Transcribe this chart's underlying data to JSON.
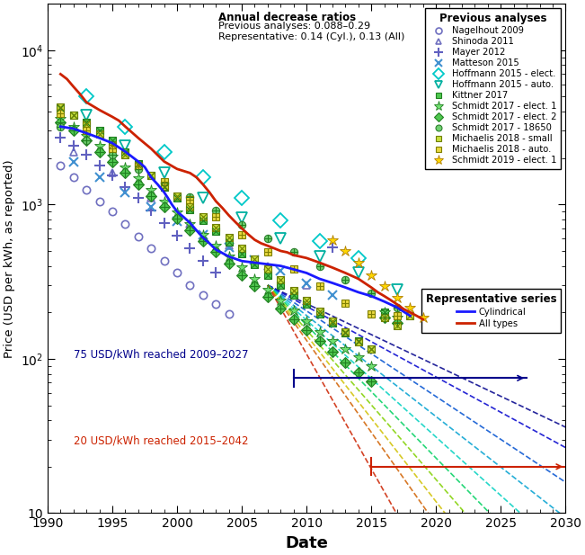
{
  "xlabel": "Date",
  "ylabel": "Price (USD per kWh, as reported)",
  "xlim": [
    1990,
    2030
  ],
  "ylim": [
    10,
    20000
  ],
  "annotation_75": "75 USD/kWh reached 2009–2027",
  "annotation_20": "20 USD/kWh reached 2015–2042",
  "legend_title1": "Annual decrease ratios",
  "legend_line2": "Previous analyses: 0.088–0.29",
  "legend_line3": "Representative: 0.14 (Cyl.), 0.13 (All)",
  "blue_line_x": [
    1991,
    1992,
    1993,
    1994,
    1995,
    1996,
    1997,
    1997.5,
    1998,
    1998.5,
    1999,
    1999.3,
    1999.6,
    2000,
    2000.5,
    2001,
    2001.5,
    2002,
    2002.5,
    2003,
    2004,
    2005,
    2006,
    2007,
    2008,
    2009,
    2010,
    2011,
    2012,
    2013,
    2014,
    2015,
    2016,
    2017,
    2018
  ],
  "blue_line_y": [
    3200,
    3100,
    2900,
    2700,
    2500,
    2200,
    1900,
    1750,
    1500,
    1350,
    1200,
    1100,
    1000,
    900,
    830,
    760,
    680,
    610,
    560,
    510,
    460,
    430,
    420,
    410,
    400,
    380,
    360,
    330,
    310,
    290,
    270,
    255,
    235,
    215,
    190
  ],
  "red_line_x": [
    1991,
    1991.5,
    1992,
    1992.5,
    1993,
    1994,
    1995,
    1995.5,
    1996,
    1997,
    1998,
    1999,
    2000,
    2001,
    2001.5,
    2002,
    2002.5,
    2003,
    2003.5,
    2004,
    2004.5,
    2005,
    2005.5,
    2006,
    2006.5,
    2007,
    2007.5,
    2008,
    2008.5,
    2009,
    2010,
    2011,
    2012,
    2013,
    2014,
    2015,
    2015.5,
    2016,
    2016.5,
    2017,
    2017.5,
    2018,
    2018.5,
    2019
  ],
  "red_line_y": [
    7000,
    6500,
    5800,
    5200,
    4600,
    4100,
    3700,
    3500,
    3200,
    2700,
    2300,
    1900,
    1700,
    1600,
    1500,
    1350,
    1200,
    1050,
    950,
    850,
    770,
    700,
    640,
    590,
    560,
    540,
    520,
    500,
    490,
    470,
    450,
    420,
    390,
    360,
    330,
    290,
    270,
    255,
    240,
    225,
    210,
    200,
    190,
    180
  ],
  "nagelhout_x": [
    1991,
    1992,
    1993,
    1994,
    1995,
    1996,
    1997,
    1998,
    1999,
    2000,
    2001,
    2002,
    2003,
    2004
  ],
  "nagelhout_y": [
    1800,
    1500,
    1250,
    1050,
    900,
    750,
    620,
    520,
    430,
    360,
    300,
    260,
    225,
    195
  ],
  "shinoda_x": [
    1992,
    1995,
    1998,
    2001,
    2004,
    2007,
    2010
  ],
  "shinoda_y": [
    2200,
    1600,
    1100,
    750,
    540,
    400,
    300
  ],
  "mayer_x": [
    1991,
    1992,
    1993,
    1994,
    1995,
    1996,
    1997,
    1998,
    1999,
    2000,
    2001,
    2002,
    2003,
    2012
  ],
  "mayer_y": [
    2700,
    2400,
    2100,
    1800,
    1550,
    1300,
    1100,
    920,
    760,
    630,
    520,
    430,
    360,
    530
  ],
  "matteson_x": [
    1992,
    1994,
    1996,
    1998,
    2000,
    2002,
    2004,
    2006,
    2008,
    2010,
    2012
  ],
  "matteson_y": [
    1900,
    1500,
    1200,
    960,
    780,
    640,
    530,
    440,
    370,
    310,
    260
  ],
  "hoffmann_elect_x": [
    1993,
    1996,
    1999,
    2002,
    2005,
    2008,
    2011,
    2014
  ],
  "hoffmann_elect_y": [
    5000,
    3200,
    2200,
    1500,
    1100,
    790,
    580,
    450
  ],
  "hoffmann_auto_x": [
    1993,
    1996,
    1999,
    2002,
    2005,
    2008,
    2011,
    2014,
    2017
  ],
  "hoffmann_auto_y": [
    3800,
    2400,
    1600,
    1100,
    820,
    600,
    460,
    360,
    280
  ],
  "kittner_x": [
    1991,
    1992,
    1993,
    1994,
    1995,
    1996,
    1997,
    1998,
    1999,
    2000,
    2001,
    2002,
    2003,
    2004,
    2005,
    2006,
    2007,
    2008,
    2009,
    2010,
    2011,
    2012,
    2013,
    2014,
    2015,
    2016
  ],
  "kittner_y": [
    4200,
    3800,
    3400,
    3000,
    2600,
    2200,
    1850,
    1550,
    1300,
    1100,
    930,
    790,
    670,
    570,
    480,
    410,
    350,
    300,
    260,
    225,
    195,
    170,
    148,
    130,
    115,
    200
  ],
  "schmidt_e1_x": [
    1991,
    1992,
    1993,
    1994,
    1995,
    1996,
    1997,
    1998,
    1999,
    2000,
    2001,
    2002,
    2003,
    2004,
    2005,
    2006,
    2007,
    2008,
    2009,
    2010,
    2011,
    2012,
    2013,
    2014,
    2015,
    2016,
    2017
  ],
  "schmidt_e1_y": [
    3600,
    3200,
    2800,
    2400,
    2050,
    1750,
    1480,
    1250,
    1050,
    890,
    750,
    640,
    540,
    460,
    390,
    330,
    280,
    240,
    205,
    175,
    150,
    130,
    115,
    102,
    90,
    200,
    185
  ],
  "schmidt_e2_x": [
    1991,
    1992,
    1993,
    1994,
    1995,
    1996,
    1997,
    1998,
    1999,
    2000,
    2001,
    2002,
    2003,
    2004,
    2005,
    2006,
    2007,
    2008,
    2009,
    2010,
    2011,
    2012,
    2013,
    2014,
    2015,
    2016,
    2017
  ],
  "schmidt_e2_y": [
    3400,
    3000,
    2600,
    2200,
    1880,
    1600,
    1350,
    1140,
    960,
    810,
    685,
    580,
    490,
    415,
    350,
    297,
    252,
    213,
    181,
    154,
    131,
    111,
    95,
    82,
    71,
    185,
    170
  ],
  "schmidt_18650_x": [
    1991,
    1993,
    1995,
    1997,
    1999,
    2001,
    2003,
    2005,
    2007,
    2009,
    2011,
    2013,
    2015,
    2017
  ],
  "schmidt_18650_y": [
    3200,
    2600,
    2100,
    1700,
    1380,
    1120,
    910,
    740,
    600,
    490,
    400,
    325,
    265,
    215
  ],
  "michaelis_small_x": [
    1991,
    1992,
    1993,
    1994,
    1995,
    1996,
    1997,
    1998,
    1999,
    2000,
    2001,
    2002,
    2003,
    2004,
    2005,
    2006,
    2007,
    2008,
    2009,
    2010,
    2011,
    2012,
    2013,
    2014,
    2015,
    2016,
    2017,
    2018
  ],
  "michaelis_small_y": [
    4300,
    3800,
    3300,
    2850,
    2450,
    2100,
    1800,
    1540,
    1320,
    1130,
    970,
    830,
    710,
    610,
    520,
    445,
    380,
    325,
    278,
    238,
    204,
    175,
    150,
    129,
    115,
    185,
    165,
    190
  ],
  "michaelis_auto_x": [
    1991,
    1993,
    1995,
    1997,
    1999,
    2001,
    2003,
    2005,
    2007,
    2009,
    2011,
    2013,
    2015,
    2017
  ],
  "michaelis_auto_y": [
    3900,
    3000,
    2300,
    1800,
    1400,
    1080,
    830,
    640,
    490,
    380,
    295,
    230,
    195,
    190
  ],
  "schmidt2019_x": [
    2012,
    2013,
    2014,
    2015,
    2016,
    2017,
    2018,
    2019
  ],
  "schmidt2019_y": [
    590,
    500,
    420,
    350,
    295,
    250,
    215,
    185
  ],
  "dashed_rates": [
    0.088,
    0.1,
    0.12,
    0.14,
    0.16,
    0.18,
    0.2,
    0.22,
    0.24,
    0.29
  ],
  "dashed_start_year": 2006,
  "dashed_colors": [
    "#00008b",
    "#0000cd",
    "#0050d0",
    "#00a0d0",
    "#00d0c0",
    "#00d060",
    "#80d000",
    "#d0c000",
    "#d06000",
    "#cc2200"
  ],
  "line75_y": 75,
  "line75_x_start": 2009,
  "line75_x_end": 2027,
  "line20_y": 20,
  "line20_x_start": 2015,
  "line20_x_end": 2030,
  "blue_line_color": "#1a1aff",
  "red_line_color": "#cc2200"
}
